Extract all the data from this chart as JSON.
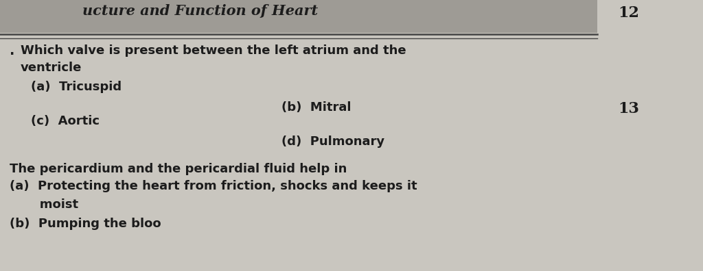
{
  "bg_color": "#c9c6bf",
  "page_color": "#d4d1ca",
  "header_bg": "#9e9b95",
  "header_text": "ucture and Function of Heart",
  "header_fontsize": 16,
  "question_num": "12",
  "question_num2": "13",
  "q_line1": "Which valve is present between the left atrium and the",
  "q_line2": "ventricle",
  "opt_a": "(a)  Tricuspid",
  "opt_b": "(b)  Mitral",
  "opt_c": "(c)  Aortic",
  "opt_d": "(d)  Pulmonary",
  "next_q": "The pericardium and the pericardial fluid help in",
  "next_a1": "(a)  Protecting the heart from friction, shocks and keeps it",
  "next_a2": "       moist",
  "next_b": "(b)  Pumping the bloo",
  "text_color": "#1c1c1c",
  "header_line_color": "#444444",
  "font_size_header": 15,
  "font_size_body": 13,
  "font_size_num": 16
}
